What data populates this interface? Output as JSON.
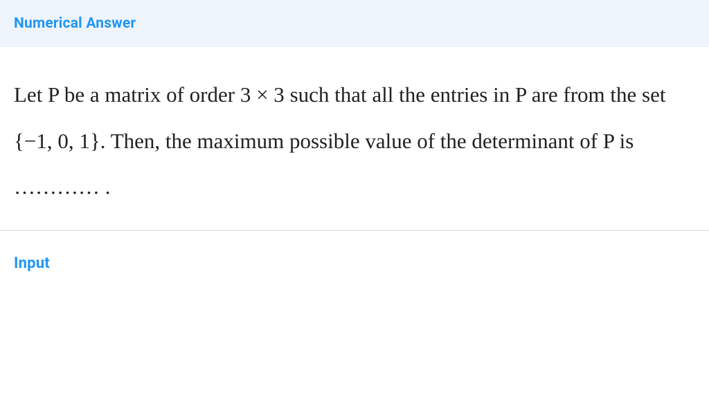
{
  "header": {
    "label": "Numerical Answer",
    "background_color": "#eef4fb",
    "text_color": "#2196f3",
    "font_size": 21,
    "font_weight": 700
  },
  "question": {
    "text_part1": "Let P be a matrix of order ",
    "matrix_order": "3 × 3",
    "text_part2": " such that all the entries in P are from the set ",
    "set_notation": "{−1, 0, 1}",
    "text_part3": ". Then, the maximum possible value of the determinant of P is ",
    "blank": "…………",
    "text_part4": " .",
    "font_size": 31,
    "text_color": "#212121",
    "line_height": 2.15,
    "background_color": "#ffffff"
  },
  "input": {
    "label": "Input",
    "text_color": "#2196f3",
    "font_size": 22,
    "font_weight": 700,
    "background_color": "#ffffff"
  },
  "separator": {
    "color": "#e0e0e0"
  }
}
